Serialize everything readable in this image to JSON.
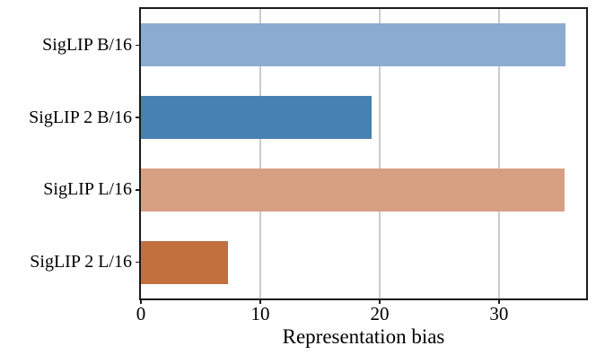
{
  "figure": {
    "background": "#ffffff",
    "spine_color": "#1a1a1a",
    "grid_color": "#cccccc",
    "text_color": "#000000"
  },
  "chart_data": {
    "type": "bar",
    "orientation": "horizontal",
    "title": "",
    "xlabel": "Representation bias",
    "ylabel": "",
    "categories": [
      "SigLIP B/16",
      "SigLIP 2 B/16",
      "SigLIP L/16",
      "SigLIP 2 L/16"
    ],
    "values": [
      35.6,
      19.3,
      35.5,
      7.3
    ],
    "colors": [
      "#8BACD0",
      "#4781B1",
      "#D7A083",
      "#C2703E"
    ],
    "xlim": [
      0,
      37.3
    ],
    "xticks": [
      0,
      10,
      20,
      30
    ],
    "gridlines": [
      10,
      20,
      30
    ],
    "grid": "vertical-only",
    "legend": "none",
    "bar_height_fraction": 0.6
  }
}
